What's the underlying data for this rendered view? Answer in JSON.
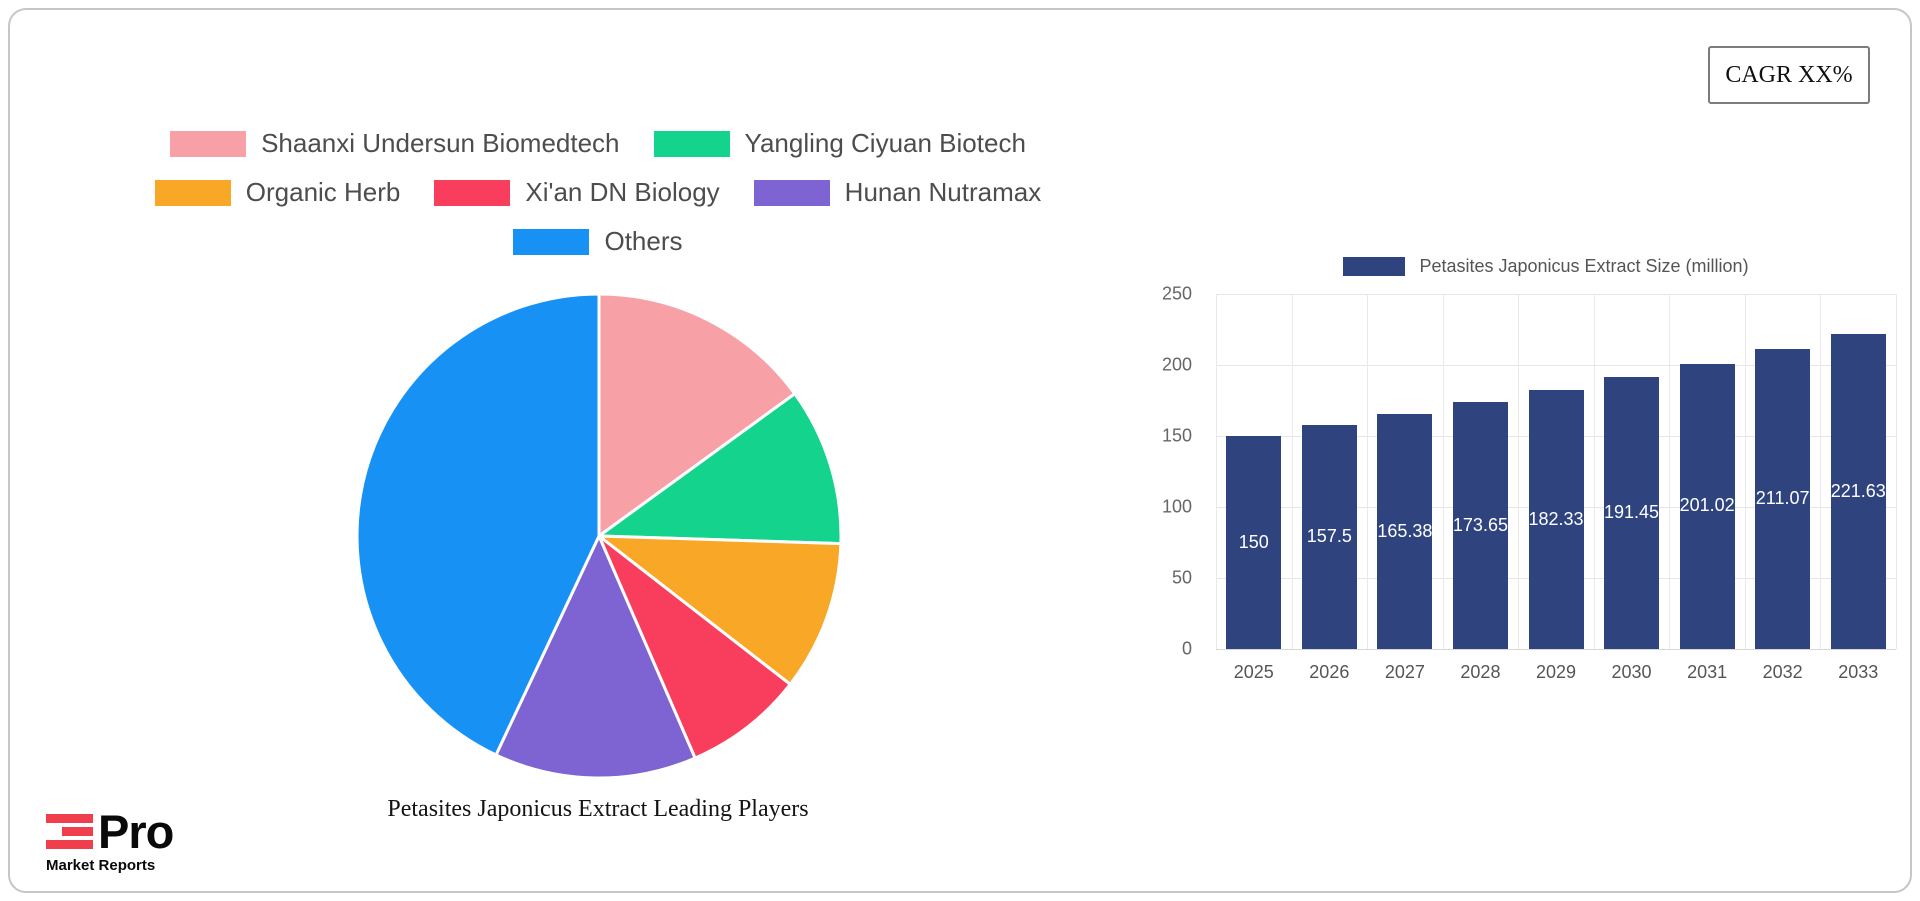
{
  "cagr": {
    "label": "CAGR XX%"
  },
  "logo": {
    "title": "Pro",
    "subtitle": "Market Reports",
    "accent_color": "#f03e4d"
  },
  "chart_data": [
    {
      "type": "pie",
      "title": "Petasites Japonicus Extract Leading Players",
      "labels": [
        "Shaanxi Undersun Biomedtech",
        "Yangling Ciyuan Biotech",
        "Organic Herb",
        "Xi'an DN Biology",
        "Hunan Nutramax",
        "Others"
      ],
      "values": [
        15,
        10.5,
        10,
        8,
        13.5,
        43
      ],
      "colors": [
        "#f7a1a7",
        "#14d38c",
        "#f9a727",
        "#f83e5c",
        "#7e63d2",
        "#1791f3"
      ],
      "legend_position": "top",
      "start_angle_deg": 0,
      "direction": "clockwise"
    },
    {
      "type": "bar",
      "title": "Petasites Japonicus Extract Size (million)",
      "categories": [
        "2025",
        "2026",
        "2027",
        "2028",
        "2029",
        "2030",
        "2031",
        "2032",
        "2033"
      ],
      "values": [
        150,
        157.5,
        165.38,
        173.65,
        182.33,
        191.45,
        201.02,
        211.07,
        221.63
      ],
      "bar_color": "#2f447e",
      "xlabel": "",
      "ylabel": "",
      "ylim": [
        0,
        250
      ],
      "y_ticks": [
        0,
        50,
        100,
        150,
        200,
        250
      ],
      "grid": true,
      "legend_position": "top",
      "value_label_color": "#ffffff"
    }
  ]
}
